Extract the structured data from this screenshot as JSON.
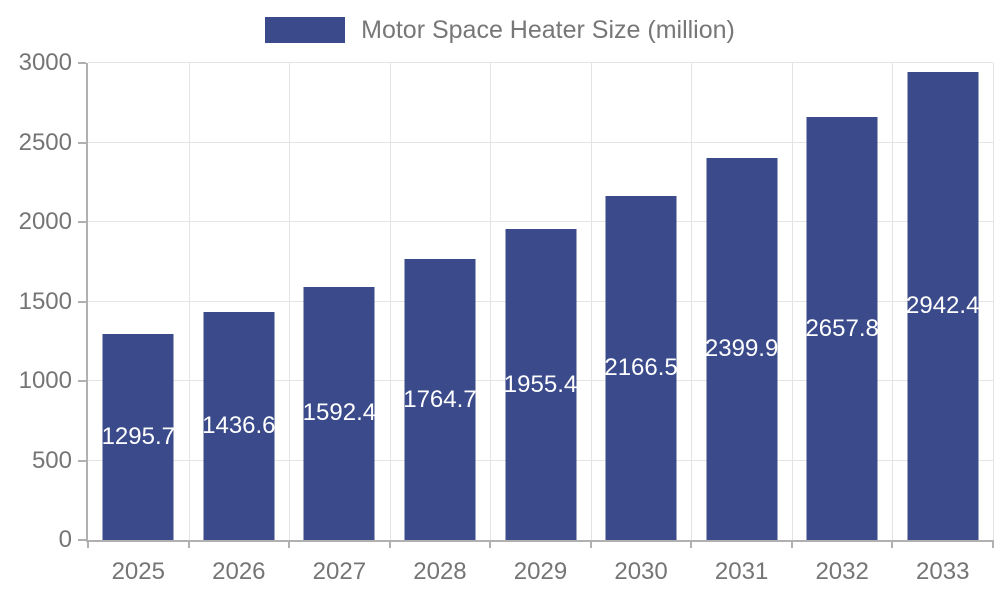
{
  "legend": {
    "label": "Motor Space Heater Size (million)"
  },
  "chart_data": {
    "type": "bar",
    "title": "Motor Space Heater Size (million)",
    "categories": [
      "2025",
      "2026",
      "2027",
      "2028",
      "2029",
      "2030",
      "2031",
      "2032",
      "2033"
    ],
    "values": [
      1295.7,
      1436.6,
      1592.4,
      1764.7,
      1955.4,
      2166.5,
      2399.9,
      2657.8,
      2942.4
    ],
    "xlabel": "",
    "ylabel": "",
    "ylim": [
      0,
      3000
    ],
    "y_ticks": [
      0,
      500,
      1000,
      1500,
      2000,
      2500,
      3000
    ],
    "grid": true,
    "legend_position": "top-center",
    "value_label_position": "inside-middle",
    "colors": {
      "bar": "#3A4A8A",
      "value_label": "#FFFFFF",
      "axis_text": "#757575",
      "grid_line": "#E4E4E4",
      "axis_line": "#B0B0B0",
      "legend_text": "#777777",
      "background": "#FFFFFF"
    }
  }
}
